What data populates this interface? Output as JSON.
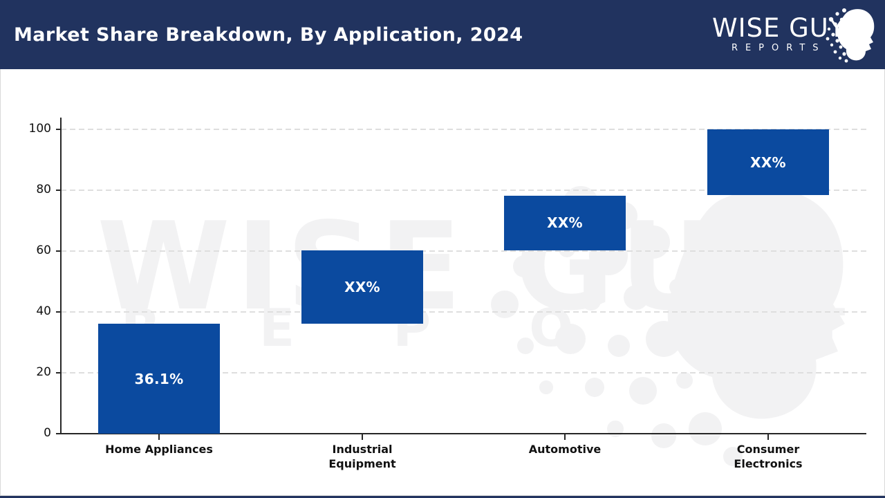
{
  "header": {
    "title": "Market Share Breakdown, By Application, 2024",
    "bg_color": "#21335f",
    "logo": {
      "line1": "WISE GUY",
      "line2": "REPORTS"
    }
  },
  "watermark": {
    "line1": "WISE GUY",
    "line2": "R E P O R T S"
  },
  "footer": {
    "bar_color": "#21335f"
  },
  "chart_data": {
    "type": "bar",
    "subtype": "waterfall",
    "title": "Market Share Breakdown, By Application, 2024",
    "categories": [
      "Home Appliances",
      "Industrial Equipment",
      "Automotive",
      "Consumer Electronics"
    ],
    "category_lines": [
      [
        "Home Appliances"
      ],
      [
        "Industrial",
        "Equipment"
      ],
      [
        "Automotive"
      ],
      [
        "Consumer",
        "Electronics"
      ]
    ],
    "segments": [
      {
        "category": "Home Appliances",
        "start": 0,
        "end": 36.1,
        "label": "36.1%"
      },
      {
        "category": "Industrial Equipment",
        "start": 36.1,
        "end": 60.2,
        "label": "XX%"
      },
      {
        "category": "Automotive",
        "start": 60.3,
        "end": 78.2,
        "label": "XX%"
      },
      {
        "category": "Consumer Electronics",
        "start": 78.3,
        "end": 100,
        "label": "XX%"
      }
    ],
    "bar_color": "#0b4a9f",
    "label_color": "#ffffff",
    "ylim": [
      0,
      100
    ],
    "yticks": [
      0,
      20,
      40,
      60,
      80,
      100
    ],
    "xlabel": "",
    "ylabel": "",
    "grid": true,
    "gridline_style": "dashed",
    "legend": false
  }
}
